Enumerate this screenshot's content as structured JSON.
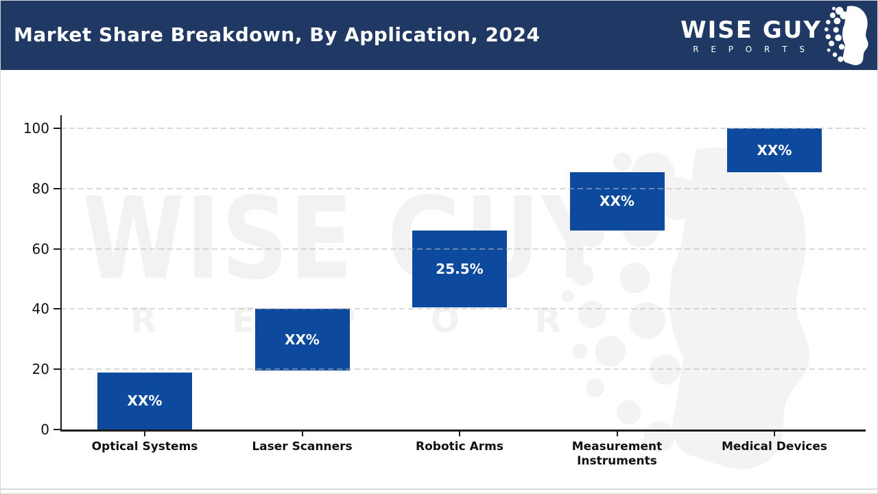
{
  "header": {
    "title": "Market Share Breakdown, By Application, 2024",
    "logo": {
      "line1": "WISE GUY",
      "line2": "R E P O R T S"
    }
  },
  "watermark": {
    "line1": "WISE GUY",
    "line2": "R E P O R T S"
  },
  "colors": {
    "header_bg": "#1f3864",
    "bar": "#0d4a9e",
    "bar_label_text": "#ffffff",
    "axis": "#1c1c1c",
    "gridline": "#d9d9d9",
    "watermark": "#f2f2f2",
    "title_text": "#ffffff"
  },
  "chart_data": {
    "type": "bar",
    "subtype": "waterfall",
    "title": "Market Share Breakdown, By Application, 2024",
    "categories": [
      "Optical Systems",
      "Laser Scanners",
      "Robotic Arms",
      "Measurement Instruments",
      "Medical Devices"
    ],
    "segments": [
      {
        "category": "Optical Systems",
        "start": 0,
        "end": 19,
        "label": "XX%"
      },
      {
        "category": "Laser Scanners",
        "start": 19.5,
        "end": 40,
        "label": "XX%"
      },
      {
        "category": "Robotic Arms",
        "start": 40.5,
        "end": 66,
        "label": "25.5%"
      },
      {
        "category": "Measurement Instruments",
        "start": 66,
        "end": 85.5,
        "label": "XX%"
      },
      {
        "category": "Medical Devices",
        "start": 85.5,
        "end": 100,
        "label": "XX%"
      }
    ],
    "xlabel": "",
    "ylabel": "",
    "ylim": [
      0,
      100
    ],
    "yticks": [
      0,
      20,
      40,
      60,
      80,
      100
    ],
    "grid": "horizontal-dashed",
    "legend": "none"
  }
}
